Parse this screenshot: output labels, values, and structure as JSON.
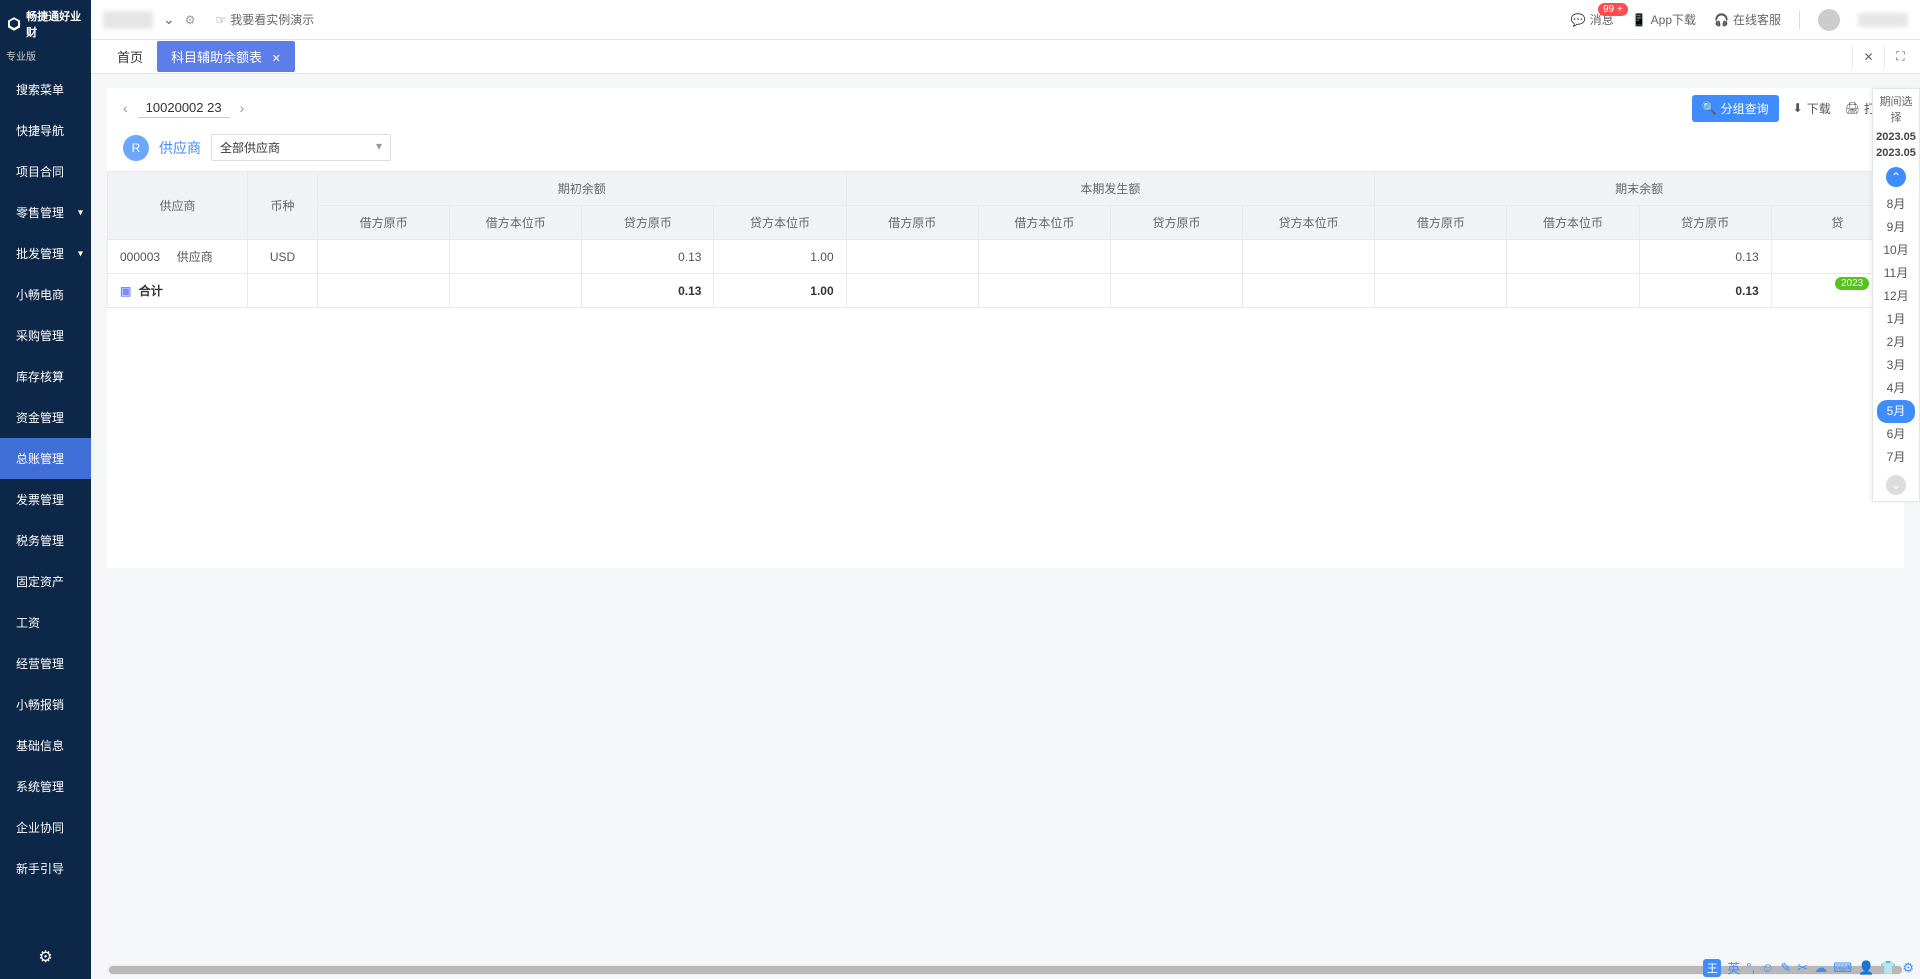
{
  "brand": {
    "name": "畅捷通好业财",
    "edition": "专业版"
  },
  "sidebar": {
    "items": [
      {
        "label": "搜索菜单",
        "caret": false
      },
      {
        "label": "快捷导航",
        "caret": false
      },
      {
        "label": "项目合同",
        "caret": false
      },
      {
        "label": "零售管理",
        "caret": true
      },
      {
        "label": "批发管理",
        "caret": true
      },
      {
        "label": "小畅电商",
        "caret": false
      },
      {
        "label": "采购管理",
        "caret": false
      },
      {
        "label": "库存核算",
        "caret": false
      },
      {
        "label": "资金管理",
        "caret": false
      },
      {
        "label": "总账管理",
        "caret": false,
        "active": true
      },
      {
        "label": "发票管理",
        "caret": false
      },
      {
        "label": "税务管理",
        "caret": false
      },
      {
        "label": "固定资产",
        "caret": false
      },
      {
        "label": "工资",
        "caret": false
      },
      {
        "label": "经营管理",
        "caret": false
      },
      {
        "label": "小畅报销",
        "caret": false
      },
      {
        "label": "基础信息",
        "caret": false
      },
      {
        "label": "系统管理",
        "caret": false
      },
      {
        "label": "企业协同",
        "caret": false
      },
      {
        "label": "新手引导",
        "caret": false
      }
    ]
  },
  "topbar": {
    "demo": "我要看实例演示",
    "msg": "消息",
    "msg_badge": "99 +",
    "download": "App下载",
    "support": "在线客服"
  },
  "tabs": {
    "home": "首页",
    "active": "科目辅助余额表"
  },
  "toolbar": {
    "code": "10020002  23",
    "group_query": "分组查询",
    "download": "下载",
    "print": "打印"
  },
  "filter": {
    "badge": "R",
    "label": "供应商",
    "select": "全部供应商"
  },
  "table": {
    "group_headers": [
      "期初余额",
      "本期发生额",
      "期末余额"
    ],
    "col_supplier": "供应商",
    "col_currency": "币种",
    "sub_cols": [
      "借方原币",
      "借方本位币",
      "贷方原币",
      "贷方本位币",
      "借方原币",
      "借方本位币",
      "贷方原币",
      "贷方本位币",
      "借方原币",
      "借方本位币",
      "贷方原币",
      "贷"
    ],
    "row": {
      "code": "000003",
      "name": "供应商",
      "currency": "USD",
      "v1": "0.13",
      "v2": "1.00",
      "v3": "0.13"
    },
    "total_label": "合计",
    "total": {
      "v1": "0.13",
      "v2": "1.00",
      "v3": "0.13"
    }
  },
  "period": {
    "title": "期间选择",
    "from": "2023.05",
    "to": "2023.05",
    "year_badge": "2023",
    "months": [
      "8月",
      "9月",
      "10月",
      "11月",
      "12月",
      "1月",
      "2月",
      "3月",
      "4月",
      "5月",
      "6月",
      "7月"
    ],
    "active_month": "5月"
  },
  "ime": {
    "label": "英"
  },
  "colors": {
    "sidebar_bg": "#0d2748",
    "primary": "#3f8cff",
    "tab_active": "#5d7ee8",
    "nav_active": "#3f6fd6",
    "badge_red": "#ff4d4f",
    "year_green": "#52c41a",
    "th_bg": "#f1f2f5",
    "border": "#e9e9e9"
  }
}
